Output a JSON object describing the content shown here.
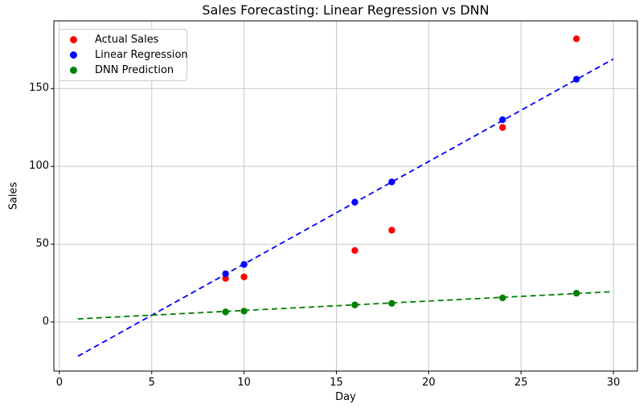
{
  "chart_data": {
    "type": "scatter",
    "title": "Sales Forecasting: Linear Regression vs DNN",
    "xlabel": "Day",
    "ylabel": "Sales",
    "xlim": [
      -0.3,
      31.3
    ],
    "ylim": [
      -31.5,
      193.5
    ],
    "xticks": [
      0,
      5,
      10,
      15,
      20,
      25,
      30
    ],
    "yticks": [
      0,
      50,
      100,
      150
    ],
    "grid": true,
    "grid_color": "#c8c8c8",
    "spine_color": "#000000",
    "background_color": "#ffffff",
    "legend_position": "upper-left",
    "x": [
      9,
      10,
      16,
      18,
      24,
      28
    ],
    "series": [
      {
        "name": "Actual Sales",
        "key": "actual-sales",
        "color": "#ff0000",
        "values": [
          28,
          29,
          46,
          59,
          125,
          182
        ]
      },
      {
        "name": "Linear Regression",
        "key": "linear-regression",
        "color": "#0000ff",
        "values": [
          31,
          37,
          77,
          90,
          130,
          156
        ]
      },
      {
        "name": "DNN Prediction",
        "key": "dnn-prediction",
        "color": "#008000",
        "values": [
          6.5,
          7,
          11,
          12,
          15.5,
          18.5
        ]
      }
    ],
    "trend_lines": [
      {
        "name": "linear-regression-trendline",
        "color": "#0000ff",
        "style": "dashed",
        "x": [
          1,
          30
        ],
        "y": [
          -22,
          169
        ]
      },
      {
        "name": "dnn-prediction-trendline",
        "color": "#008000",
        "style": "dashed",
        "x": [
          1,
          30
        ],
        "y": [
          2,
          19.5
        ]
      }
    ]
  }
}
